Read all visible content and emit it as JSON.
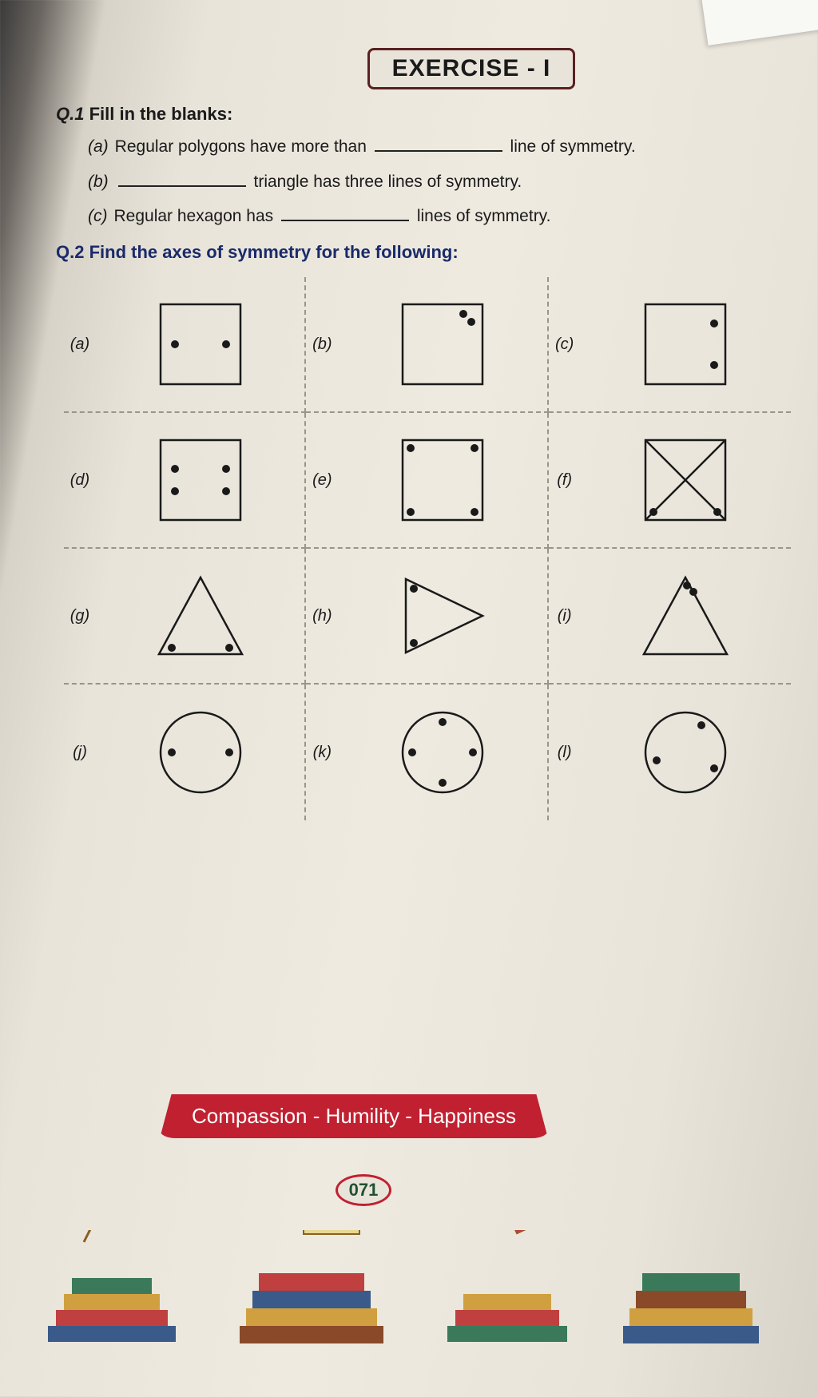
{
  "exercise_title": "EXERCISE - I",
  "q1": {
    "heading_prefix": "Q.1",
    "heading_text": "Fill in the blanks:",
    "items": [
      {
        "label": "(a)",
        "before": "Regular polygons have more than",
        "after": "line of symmetry."
      },
      {
        "label": "(b)",
        "before": "",
        "after": "triangle has three lines of symmetry."
      },
      {
        "label": "(c)",
        "before": "Regular hexagon has",
        "after": "lines of symmetry."
      }
    ]
  },
  "q2": {
    "heading_prefix": "Q.2",
    "heading_text": "Find the axes of symmetry for the following:",
    "heading_color": "#1a2a6a",
    "cells": [
      {
        "label": "(a)",
        "type": "square_2dots_mid_lr"
      },
      {
        "label": "(b)",
        "type": "square_2dots_top_right_pair"
      },
      {
        "label": "(c)",
        "type": "square_2dots_right_side"
      },
      {
        "label": "(d)",
        "type": "square_4dots_two_pairs_lr"
      },
      {
        "label": "(e)",
        "type": "square_4dots_corners"
      },
      {
        "label": "(f)",
        "type": "square_x_diagonals_dots"
      },
      {
        "label": "(g)",
        "type": "triangle_up_2dots_base"
      },
      {
        "label": "(h)",
        "type": "triangle_right_2dots_left"
      },
      {
        "label": "(i)",
        "type": "triangle_up_1dot_apex_pair"
      },
      {
        "label": "(j)",
        "type": "circle_2dots_lr"
      },
      {
        "label": "(k)",
        "type": "circle_4dots_nsew"
      },
      {
        "label": "(l)",
        "type": "circle_3dots"
      }
    ],
    "stroke_color": "#1a1a1a",
    "stroke_width": 2.5,
    "dot_radius": 5,
    "dot_color": "#1a1a1a",
    "dash_color": "#9a958a"
  },
  "footer": {
    "banner_text": "Compassion - Humility - Happiness",
    "banner_bg": "#c02030",
    "page_number": "071"
  }
}
